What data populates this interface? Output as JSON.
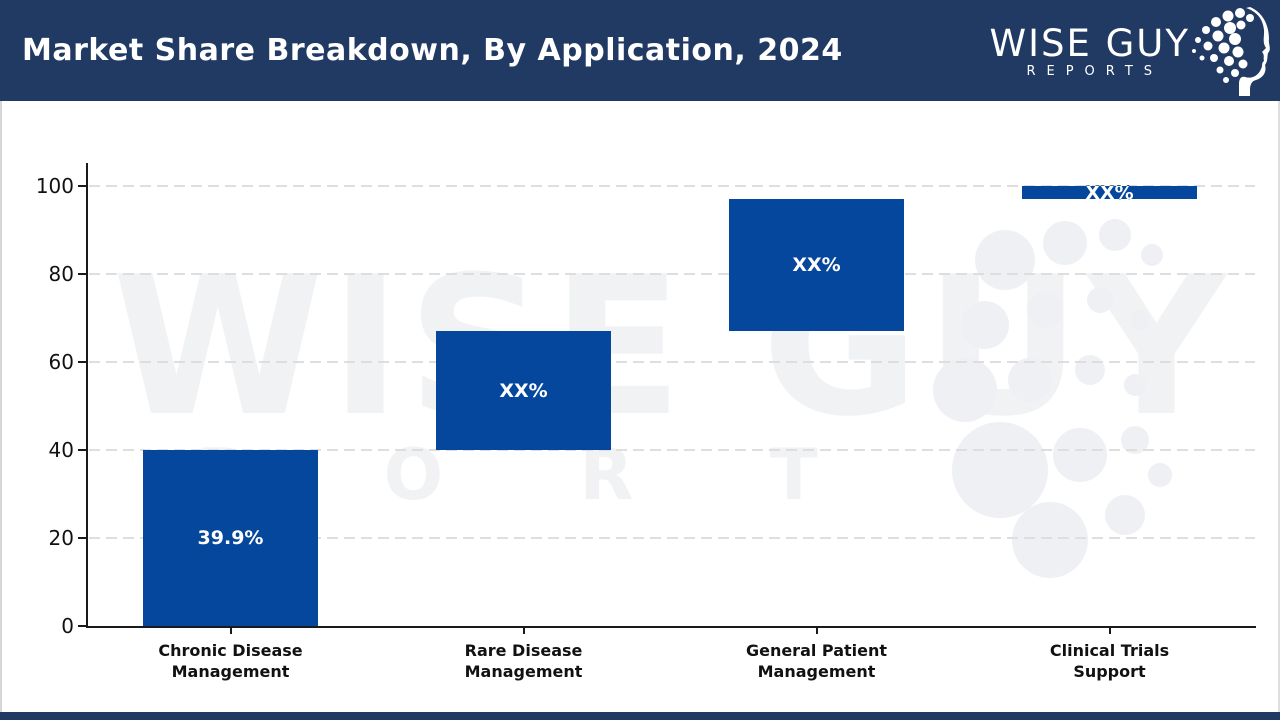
{
  "header": {
    "title": "Market Share Breakdown, By Application, 2024",
    "logo": {
      "line1": "WISE GUY",
      "line2": "REPORTS"
    }
  },
  "watermark": {
    "line1": "WISE GUY",
    "line2": "P O R T S"
  },
  "chart_data": {
    "type": "bar",
    "subtype": "waterfall",
    "title": "Market Share Breakdown, By Application, 2024",
    "categories": [
      "Chronic Disease Management",
      "Rare Disease Management",
      "General Patient Management",
      "Clinical Trials Support"
    ],
    "bars": [
      {
        "category": "Chronic Disease Management",
        "lines": [
          "Chronic Disease",
          "Management"
        ],
        "start": 0,
        "end": 40,
        "label": "39.9%"
      },
      {
        "category": "Rare Disease Management",
        "lines": [
          "Rare Disease",
          "Management"
        ],
        "start": 40,
        "end": 67,
        "label": "XX%"
      },
      {
        "category": "General Patient Management",
        "lines": [
          "General Patient",
          "Management"
        ],
        "start": 67,
        "end": 97,
        "label": "XX%"
      },
      {
        "category": "Clinical Trials Support",
        "lines": [
          "Clinical Trials",
          "Support"
        ],
        "start": 97,
        "end": 100,
        "label": "XX%"
      }
    ],
    "yticks": [
      0,
      20,
      40,
      60,
      80,
      100
    ],
    "ylim": [
      0,
      105
    ],
    "xlabel": "",
    "ylabel": "",
    "grid": "horizontal-dashed",
    "legend": "none",
    "bar_color": "#05479c",
    "bar_label_color": "#ffffff"
  },
  "colors": {
    "header_bg": "#213a64",
    "footer_bg": "#213a64",
    "bar": "#05479c",
    "gridline": "#dedede",
    "watermark": "#f1f2f4",
    "axis": "#1a1a1a"
  }
}
